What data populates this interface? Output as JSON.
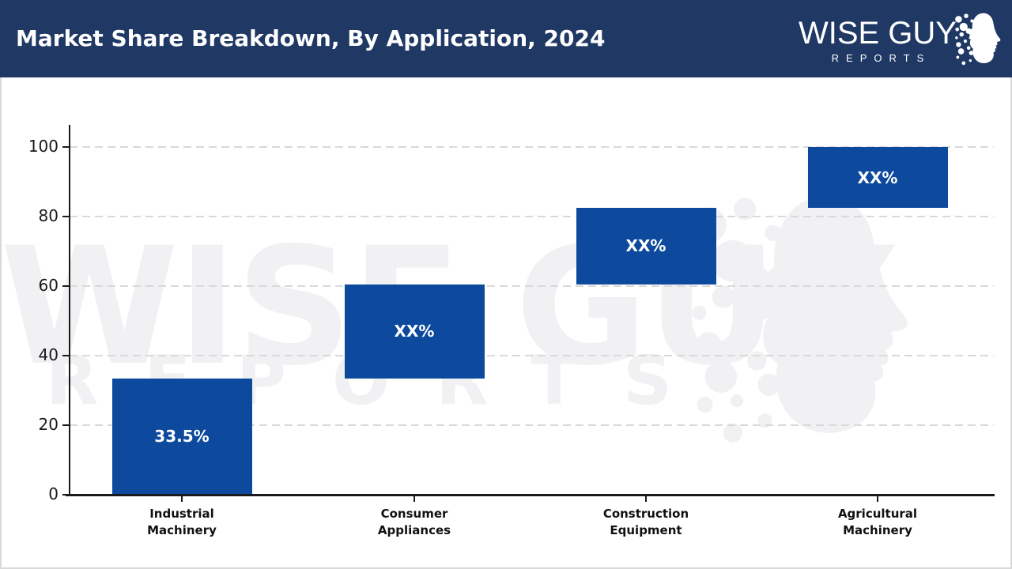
{
  "header": {
    "title": "Market Share Breakdown, By Application, 2024",
    "logo_name": "WISE GUY",
    "logo_sub": "REPORTS"
  },
  "watermark": {
    "title": "WISE GUY",
    "subtitle": "REPORTS"
  },
  "chart_data": {
    "type": "bar",
    "subtype": "waterfall",
    "title": "Market Share Breakdown, By Application, 2024",
    "xlabel": "",
    "ylabel": "",
    "ylim": [
      0,
      107
    ],
    "yticks": [
      0,
      20,
      40,
      60,
      80,
      100
    ],
    "grid": "horizontal dashed",
    "legend": "none",
    "bar_color": "#0d4a9e",
    "bar_label_color": "#ffffff",
    "categories": [
      "Industrial Machinery",
      "Consumer Appliances",
      "Construction Equipment",
      "Agricultural Machinery"
    ],
    "values": [
      33.5,
      27,
      22,
      17.5
    ],
    "series": [
      {
        "name": "Market Share",
        "segments": [
          {
            "category": "Industrial Machinery",
            "start": 0,
            "end": 33.5,
            "label": "33.5%"
          },
          {
            "category": "Consumer Appliances",
            "start": 33.5,
            "end": 60.5,
            "label": "XX%"
          },
          {
            "category": "Construction Equipment",
            "start": 60.5,
            "end": 82.5,
            "label": "XX%"
          },
          {
            "category": "Agricultural Machinery",
            "start": 82.5,
            "end": 100,
            "label": "XX%"
          }
        ]
      }
    ]
  },
  "colors": {
    "header_bg": "#1f3864",
    "bar": "#0d4a9e",
    "grid": "#d9d9d9",
    "axis": "#1a1a1a",
    "watermark": "#f1f1f4"
  }
}
